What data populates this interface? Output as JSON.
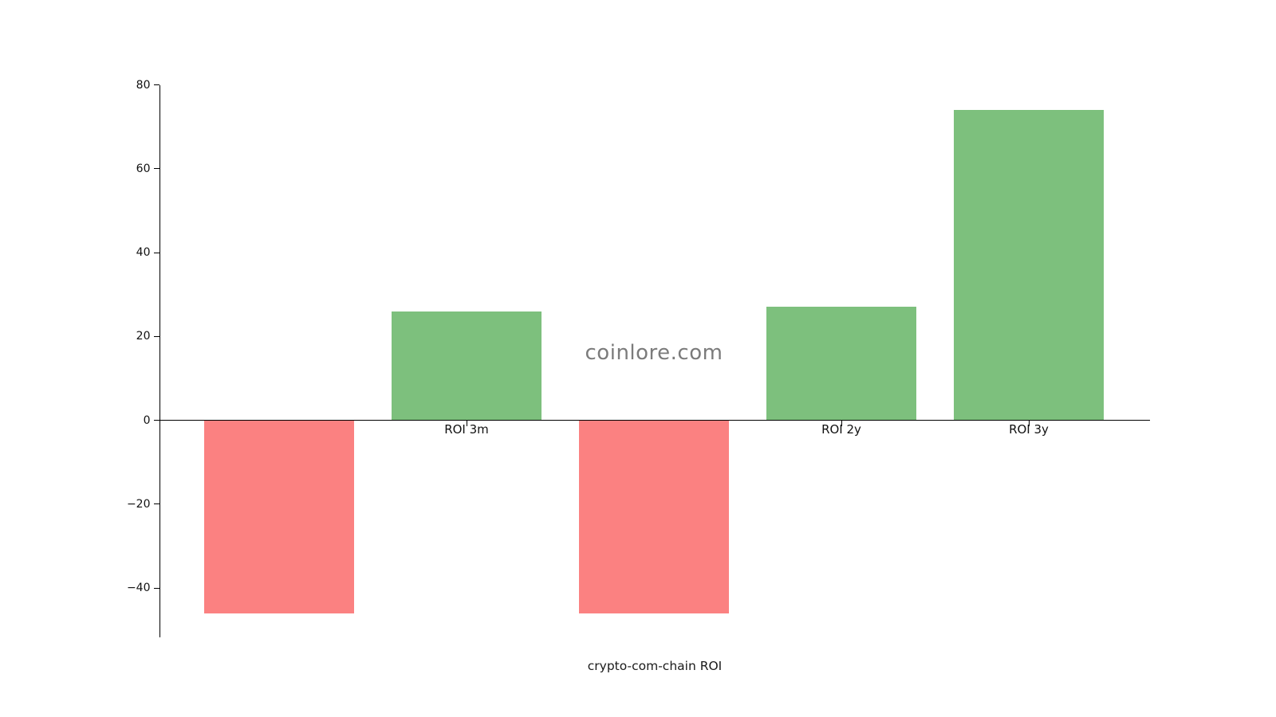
{
  "chart_data": {
    "type": "bar",
    "title": "crypto-com-chain ROI",
    "watermark": "coinlore.com",
    "xlabel": "",
    "ylabel": "",
    "grid": false,
    "legend": null,
    "ylim": [
      -52,
      80
    ],
    "categories": [
      "",
      "ROI 3m",
      "",
      "ROI 2y",
      "ROI 3y"
    ],
    "values": [
      -46,
      26,
      -46,
      27,
      74
    ],
    "bars": [
      {
        "label": "",
        "value": -46,
        "color_role": "negative"
      },
      {
        "label": "ROI 3m",
        "value": 26,
        "color_role": "positive"
      },
      {
        "label": "",
        "value": -46,
        "color_role": "negative"
      },
      {
        "label": "ROI 2y",
        "value": 27,
        "color_role": "positive"
      },
      {
        "label": "ROI 3y",
        "value": 74,
        "color_role": "positive"
      }
    ],
    "yticks": [
      {
        "value": 80,
        "label": "80"
      },
      {
        "value": 60,
        "label": "60"
      },
      {
        "value": 40,
        "label": "40"
      },
      {
        "value": 20,
        "label": "20"
      },
      {
        "value": 0,
        "label": "0"
      },
      {
        "value": -20,
        "label": "−20"
      },
      {
        "value": -40,
        "label": "−40"
      }
    ],
    "colors": {
      "positive_bar": "#7dc07d",
      "negative_bar": "#fb8181",
      "axis": "#000000",
      "tick_text": "#111111",
      "title_text": "#1a1a1a",
      "watermark_text": "#7b7b7b",
      "background": "#ffffff"
    }
  }
}
